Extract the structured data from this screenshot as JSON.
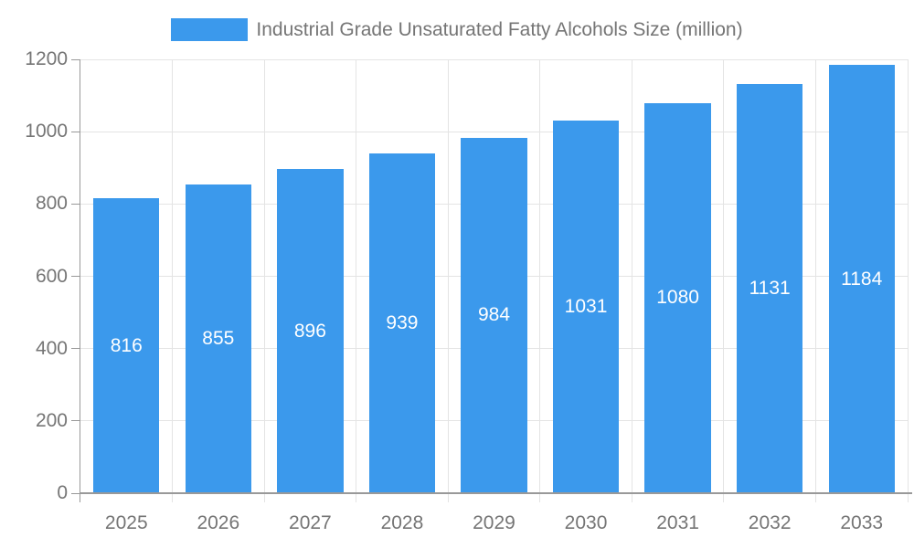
{
  "legend": {
    "label": "Industrial Grade Unsaturated Fatty Alcohols Size (million)",
    "swatch_color": "#3B99EC"
  },
  "chart_data": {
    "type": "bar",
    "title": "Industrial Grade Unsaturated Fatty Alcohols Size (million)",
    "series_name": "Industrial Grade Unsaturated Fatty Alcohols Size (million)",
    "categories": [
      "2025",
      "2026",
      "2027",
      "2028",
      "2029",
      "2030",
      "2031",
      "2032",
      "2033"
    ],
    "values": [
      816,
      855,
      896,
      939,
      984,
      1031,
      1080,
      1131,
      1184
    ],
    "xlabel": "",
    "ylabel": "",
    "ylim": [
      0,
      1200
    ],
    "yticks": [
      0,
      200,
      400,
      600,
      800,
      1000,
      1200
    ],
    "grid": true,
    "legend_position": "top",
    "bar_color": "#3B99EC",
    "value_label_color": "#ffffff"
  },
  "colors": {
    "bar": "#3B99EC",
    "axis": "#999999",
    "grid": "#e4e4e4",
    "tick_text": "#757575"
  }
}
